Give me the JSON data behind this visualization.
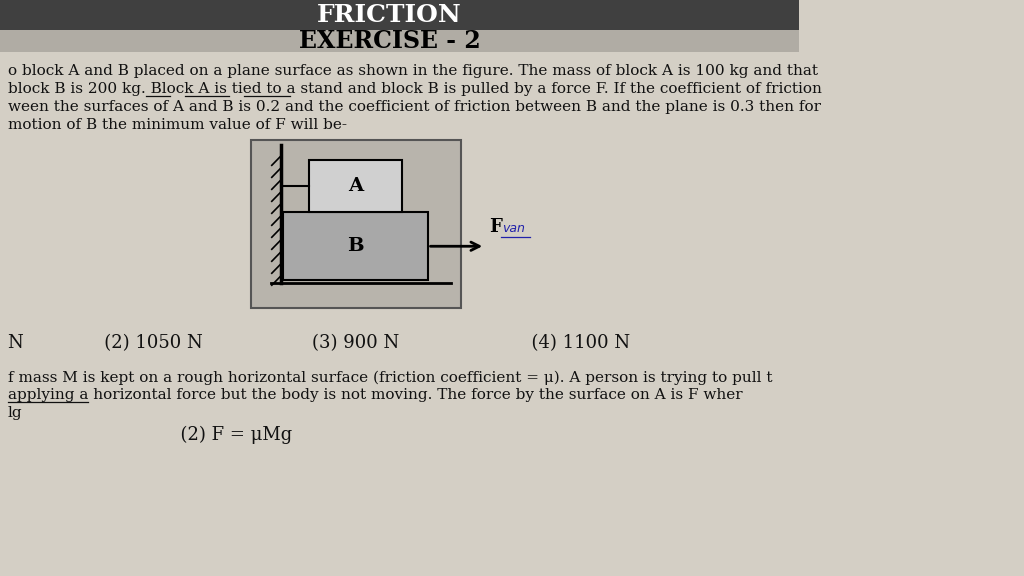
{
  "page_bg": "#d4cfc5",
  "title_bar_color": "#404040",
  "title_text": "FRICTION",
  "title_text_color": "#ffffff",
  "exercise_title": "EXERCISE - 2",
  "exercise_title_color": "#000000",
  "body_text_lines": [
    "o block A and B placed on a plane surface as shown in the figure. The mass of block A is 100 kg and that",
    "block B is 200 kg. Block A is tied to a stand and block B is pulled by a force F. If the coefficient of friction",
    "ween the surfaces of A and B is 0.2 and the coefficient of friction between B and the plane is 0.3 then for",
    "motion of B the minimum value of F will be-"
  ],
  "answer_line": "N              (2) 1050 N                   (3) 900 N                       (4) 1100 N",
  "body2_lines": [
    "f mass M is kept on a rough horizontal surface (friction coefficient = μ). A person is trying to pull t",
    "applying a horizontal force but the body is not moving. The force by the surface on A is F wher",
    "lg"
  ],
  "body2_last": "                              (2) F = μMg",
  "diagram_bg": "#b8b4ac",
  "block_A_label": "A",
  "block_B_label": "B",
  "font_size_title": 18,
  "font_size_exercise": 17,
  "font_size_body": 11,
  "font_size_answer": 13,
  "font_size_block_label": 14
}
